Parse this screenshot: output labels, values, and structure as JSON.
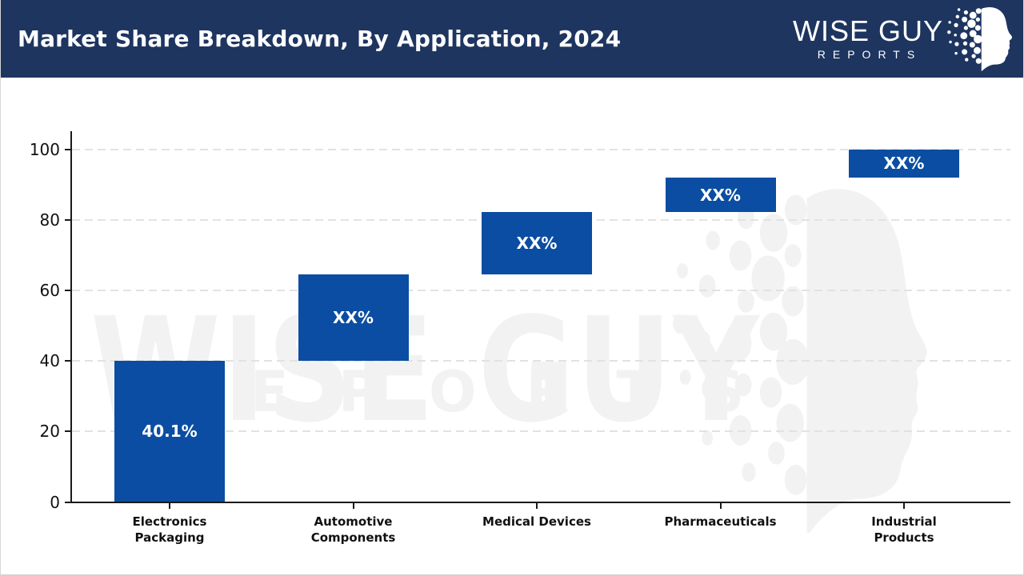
{
  "header": {
    "title": "Market Share Breakdown, By Application, 2024",
    "bg_color": "#1e3560",
    "logo": {
      "line1": "WISE GUY",
      "line2": "REPORTS",
      "icon": "head-profile-dots-icon"
    }
  },
  "watermark": {
    "line1": "WISE GUY",
    "line2": "REPORTS",
    "icon": "head-profile-dots-icon",
    "color": "#f2f2f3"
  },
  "chart_data": {
    "type": "bar",
    "variant": "waterfall-cumulative",
    "title": "Market Share Breakdown, By Application, 2024",
    "categories": [
      "Electronics Packaging",
      "Automotive Components",
      "Medical Devices",
      "Pharmaceuticals",
      "Industrial Products"
    ],
    "category_label_lines": [
      [
        "Electronics",
        "Packaging"
      ],
      [
        "Automotive",
        "Components"
      ],
      [
        "Medical Devices"
      ],
      [
        "Pharmaceuticals"
      ],
      [
        "Industrial",
        "Products"
      ]
    ],
    "segments": [
      {
        "category": "Electronics Packaging",
        "start": 0,
        "end": 40.1,
        "value": 40.1,
        "label": "40.1%"
      },
      {
        "category": "Automotive Components",
        "start": 40.1,
        "end": 64.4,
        "value": 24.3,
        "label": "XX%"
      },
      {
        "category": "Medical Devices",
        "start": 64.4,
        "end": 82.1,
        "value": 17.7,
        "label": "XX%"
      },
      {
        "category": "Pharmaceuticals",
        "start": 82.1,
        "end": 91.9,
        "value": 9.8,
        "label": "XX%"
      },
      {
        "category": "Industrial Products",
        "start": 91.9,
        "end": 100,
        "value": 8.1,
        "label": "XX%"
      }
    ],
    "yticks": [
      0,
      20,
      40,
      60,
      80,
      100
    ],
    "ylim": [
      0,
      105
    ],
    "xlabel": "",
    "ylabel": "",
    "grid": "horizontal-dashed",
    "legend": "none",
    "bar_color": "#0b4da2",
    "bar_label_color": "#ffffff"
  }
}
